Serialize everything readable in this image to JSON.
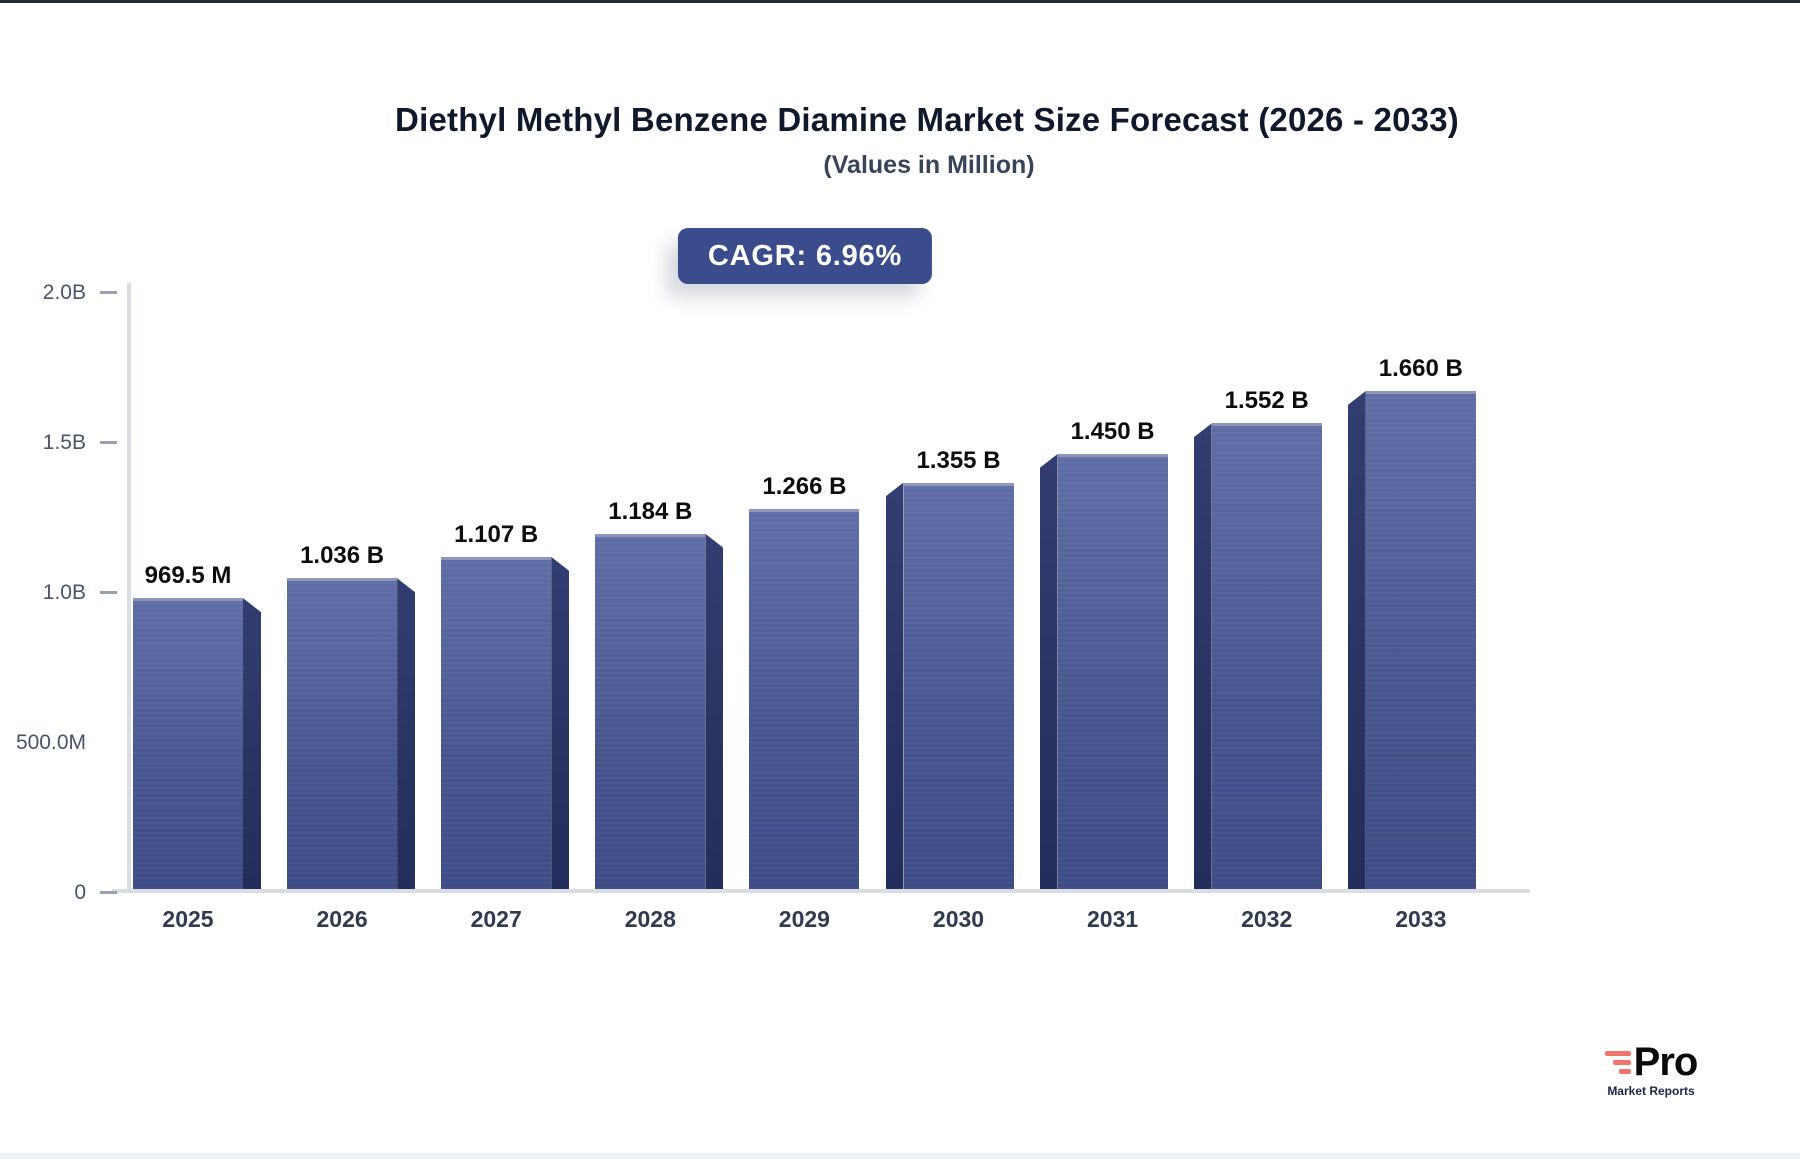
{
  "header": {
    "title": "Diethyl Methyl Benzene Diamine Market Size Forecast (2026 - 2033)",
    "subtitle": "(Values in Million)",
    "cagr_label": "CAGR: 6.96%"
  },
  "logo": {
    "text": "Pro",
    "subtext": "Market Reports"
  },
  "colors": {
    "accent_badge": "#3b4c8c",
    "bar_face_top": "#5f6da6",
    "bar_face_bottom": "#3d4b86",
    "bar_side": "#2a3463",
    "axis_line": "#d9dce1",
    "logo_red": "#f0766b"
  },
  "chart_data": {
    "type": "bar",
    "title": "Diethyl Methyl Benzene Diamine Market Size Forecast (2026 - 2033)",
    "subtitle": "(Values in Million)",
    "cagr_percent": 6.96,
    "categories": [
      "2025",
      "2026",
      "2027",
      "2028",
      "2029",
      "2030",
      "2031",
      "2032",
      "2033"
    ],
    "values_millions": [
      969.5,
      1036,
      1107,
      1184,
      1266,
      1355,
      1450,
      1552,
      1660
    ],
    "value_labels": [
      "969.5 M",
      "1.036 B",
      "1.107 B",
      "1.184 B",
      "1.266 B",
      "1.355 B",
      "1.450 B",
      "1.552 B",
      "1.660 B"
    ],
    "y_axis": [
      {
        "label": "2.0B",
        "millions": 2000,
        "tick": true
      },
      {
        "label": "1.5B",
        "millions": 1500,
        "tick": true
      },
      {
        "label": "1.0B",
        "millions": 1000,
        "tick": true
      },
      {
        "label": "500.0M",
        "millions": 500,
        "tick": false
      },
      {
        "label": "0",
        "millions": 0,
        "tick": true
      }
    ],
    "ylim_millions": [
      0,
      2000
    ],
    "grid": false,
    "legend": false,
    "style": "3d-extruded-bars, perspective vanishing at center column"
  }
}
